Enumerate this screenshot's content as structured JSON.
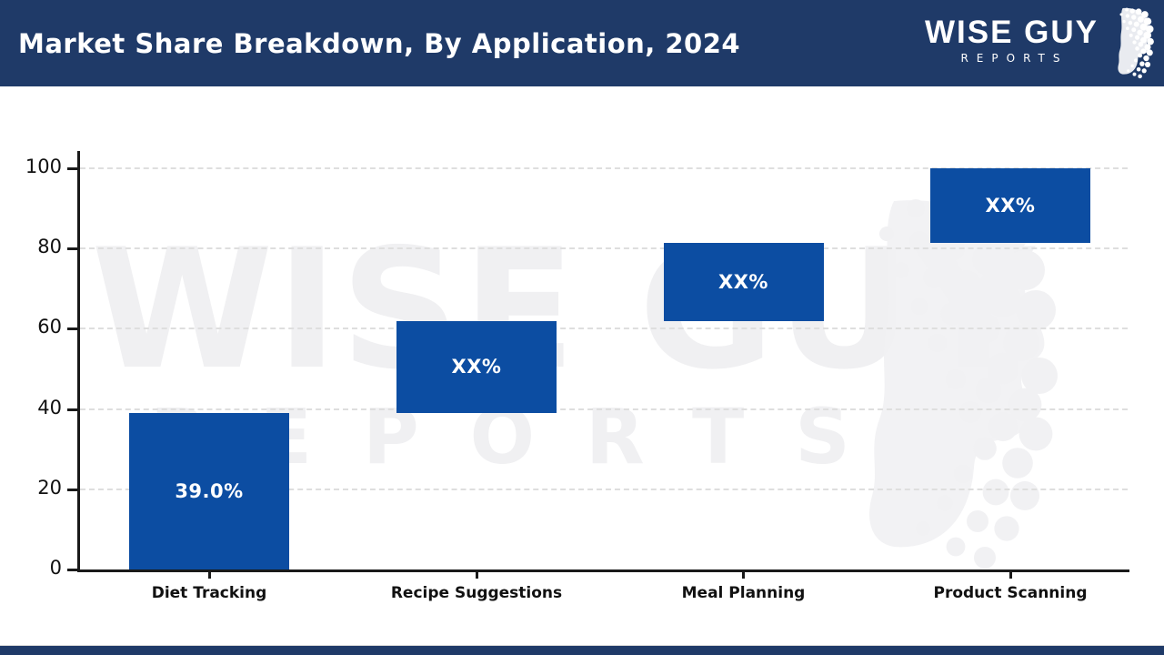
{
  "header": {
    "title": "Market Share Breakdown, By Application, 2024",
    "bg_color": "#1f3a68",
    "logo": {
      "line1": "WISE GUY",
      "line2": "REPORTS"
    }
  },
  "watermark": {
    "line1": "WISE GUY",
    "line2": "REPORTS"
  },
  "chart_data": {
    "type": "bar",
    "subtype": "waterfall-floating-bars",
    "title": "Market Share Breakdown, By Application, 2024",
    "categories": [
      "Diet Tracking",
      "Recipe Suggestions",
      "Meal Planning",
      "Product Scanning"
    ],
    "series": [
      {
        "name": "Market Share %",
        "segments": [
          {
            "category": "Diet Tracking",
            "start": 0,
            "end": 39,
            "label": "39.0%"
          },
          {
            "category": "Recipe Suggestions",
            "start": 39,
            "end": 62,
            "label": "XX%"
          },
          {
            "category": "Meal Planning",
            "start": 62,
            "end": 81.5,
            "label": "XX%"
          },
          {
            "category": "Product Scanning",
            "start": 81.5,
            "end": 100,
            "label": "XX%"
          }
        ]
      }
    ],
    "xlabel": "",
    "ylabel": "",
    "ylim": [
      0,
      100
    ],
    "yticks": [
      0,
      20,
      40,
      60,
      80,
      100
    ],
    "grid": "horizontal-dashed",
    "legend": "none",
    "bar_color": "#0c4da2",
    "bar_label_color": "#ffffff",
    "axis_color": "#1a1a1a",
    "gridline_color": "#dedede"
  }
}
